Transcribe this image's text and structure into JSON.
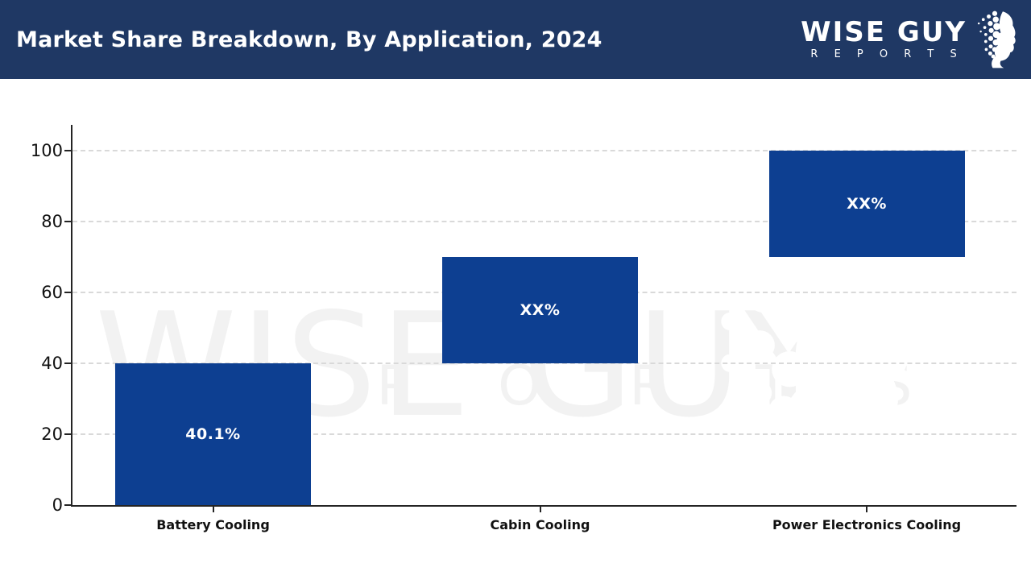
{
  "header": {
    "title": "Market Share Breakdown, By Application, 2024",
    "logo": {
      "line1": "WISE GUY",
      "line2": "R E P O R T S"
    }
  },
  "watermark": {
    "line1": "WISE GUY",
    "line2": "R E P O R T S"
  },
  "colors": {
    "header_bg": "#1f3864",
    "bar": "#0d3f91",
    "bar_label": "#ffffff",
    "grid": "#d9d9d9",
    "axis": "#242424",
    "watermark": "#f2f2f2",
    "card_border": "#d6d6d6"
  },
  "chart_data": {
    "type": "bar",
    "variant": "floating-segment-waterfall",
    "title": "Market Share Breakdown, By Application, 2024",
    "categories": [
      "Battery Cooling",
      "Cabin Cooling",
      "Power Electronics Cooling"
    ],
    "segments": [
      {
        "category": "Battery Cooling",
        "from": 0,
        "to": 40.1,
        "label": "40.1%"
      },
      {
        "category": "Cabin Cooling",
        "from": 40,
        "to": 70,
        "label": "XX%"
      },
      {
        "category": "Power Electronics Cooling",
        "from": 70,
        "to": 100,
        "label": "XX%"
      }
    ],
    "yticks": [
      0,
      20,
      40,
      60,
      80,
      100
    ],
    "ylim": [
      0,
      107
    ],
    "xlabel": "",
    "ylabel": "",
    "grid": "horizontal-dashed",
    "legend": "none"
  }
}
